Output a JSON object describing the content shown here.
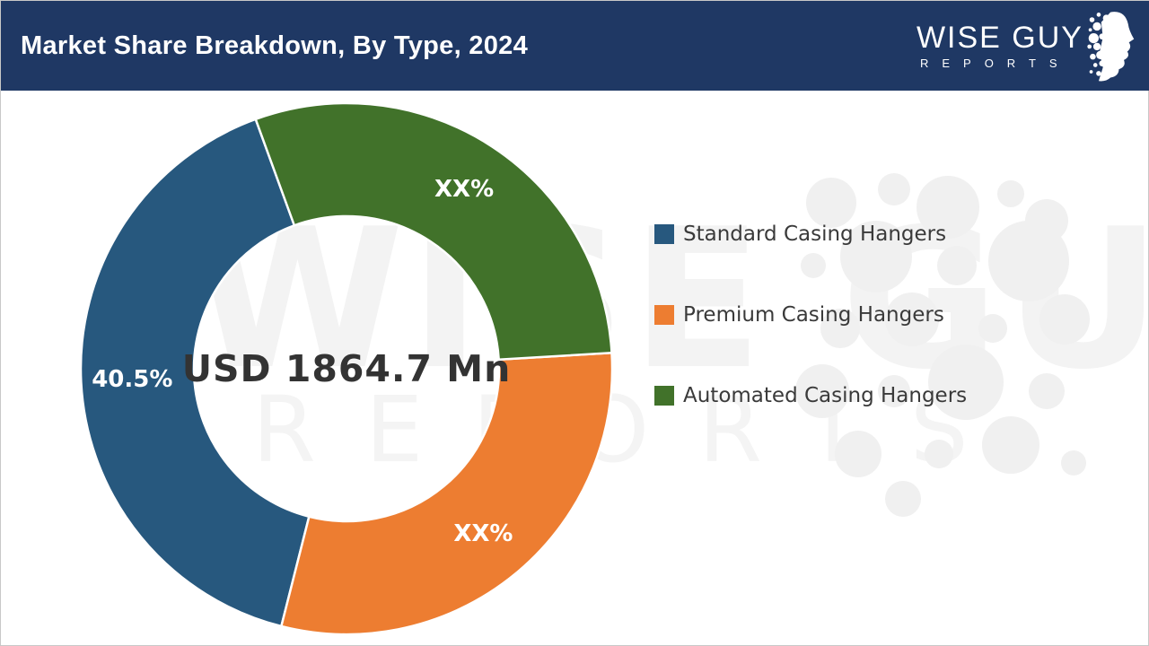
{
  "header": {
    "title": "Market Share Breakdown, By Type, 2024",
    "logo": {
      "line1": "WISE GUY",
      "line2": "REPORTS"
    }
  },
  "watermark": {
    "line1": "WISE GUY",
    "line2": "REPORTS"
  },
  "chart_data": {
    "type": "pie",
    "subtype": "donut",
    "title": "Market Share Breakdown, By Type, 2024",
    "center_label": "USD 1864.7 Mn",
    "start_angle_deg": 110,
    "direction": "counterclockwise",
    "legend_position": "right",
    "slices": [
      {
        "name": "Standard Casing Hangers",
        "label": "40.5%",
        "value_pct": 40.5,
        "color": "#27587e"
      },
      {
        "name": "Premium Casing Hangers",
        "label": "XX%",
        "value_pct": 29.9,
        "color": "#ed7d31"
      },
      {
        "name": "Automated Casing Hangers",
        "label": "XX%",
        "value_pct": 29.6,
        "color": "#41722a"
      }
    ]
  },
  "colors": {
    "header_bg": "#1f3864",
    "watermark": "#f3f3f3",
    "center_text": "#333333",
    "legend_text": "#3a3a3a"
  }
}
